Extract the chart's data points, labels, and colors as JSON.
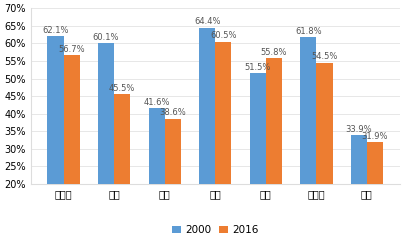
{
  "categories": [
    "奥地利",
    "丹麦",
    "法国",
    "德国",
    "荷兰",
    "西班牙",
    "英国"
  ],
  "values_2000": [
    62.1,
    60.1,
    41.6,
    64.4,
    51.5,
    61.8,
    33.9
  ],
  "values_2016": [
    56.7,
    45.5,
    38.6,
    60.5,
    55.8,
    54.5,
    31.9
  ],
  "color_2000": "#5B9BD5",
  "color_2016": "#ED7D31",
  "ylim_min": 20,
  "ylim_max": 70,
  "yticks": [
    20,
    25,
    30,
    35,
    40,
    45,
    50,
    55,
    60,
    65,
    70
  ],
  "legend_labels": [
    "2000",
    "2016"
  ],
  "bar_width": 0.32,
  "label_fontsize": 6.0,
  "tick_fontsize": 7.0,
  "legend_fontsize": 7.5,
  "background_color": "#FFFFFF",
  "grid_color": "#DDDDDD",
  "label_color": "#555555"
}
